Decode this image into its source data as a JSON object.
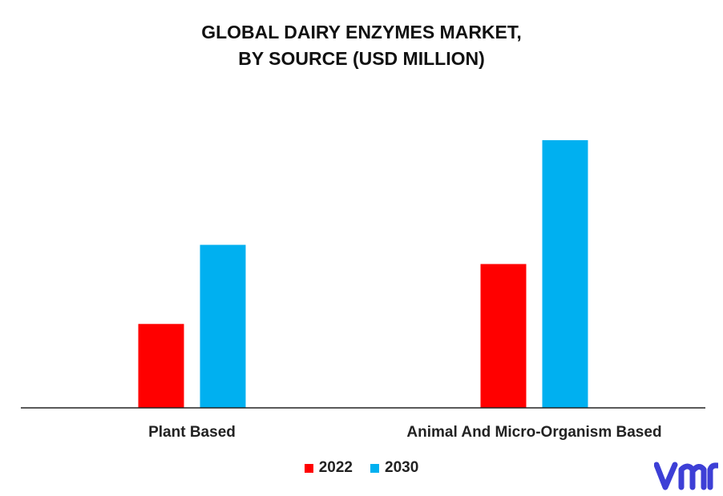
{
  "title_line1": "GLOBAL DAIRY ENZYMES MARKET,",
  "title_line2": "BY SOURCE (USD MILLION)",
  "colors": {
    "s2022": "#ff0000",
    "s2030": "#00b0f0",
    "axis": "#222222",
    "logo": "#3d3fd6"
  },
  "chart_data": {
    "type": "bar",
    "title": "GLOBAL DAIRY ENZYMES MARKET, BY SOURCE (USD MILLION)",
    "categories": [
      "Plant Based",
      "Animal And Micro-Organism Based"
    ],
    "series": [
      {
        "name": "2022",
        "values": [
          105,
          180
        ]
      },
      {
        "name": "2030",
        "values": [
          204,
          335
        ]
      }
    ],
    "ylim": [
      0,
      360
    ],
    "grid": false,
    "legend": "bottom",
    "xlabel": "",
    "ylabel": ""
  }
}
